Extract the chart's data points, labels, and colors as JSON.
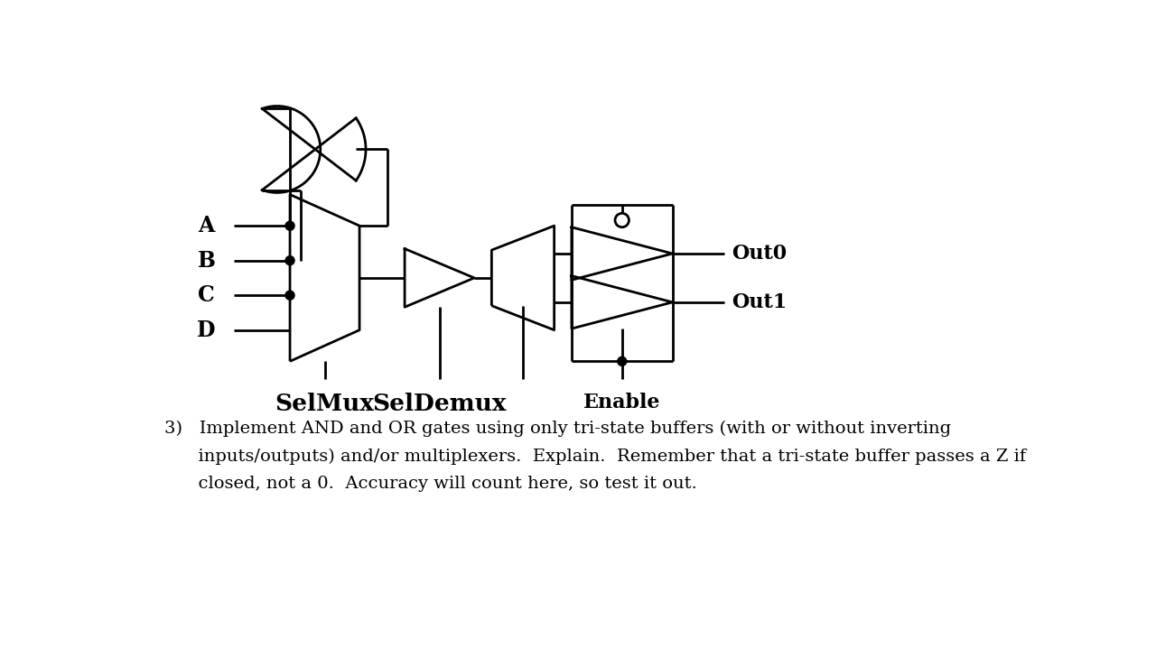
{
  "bg_color": "#ffffff",
  "line_color": "#000000",
  "lw": 2.0,
  "input_labels": [
    "A",
    "B",
    "C",
    "D"
  ],
  "label_Out0": "Out0",
  "label_Out1": "Out1",
  "label_Enable": "Enable",
  "label_SelMux": "SelMux",
  "label_SelDemux": "SelDemux",
  "q3_line1": "3)   Implement AND and OR gates using only tri-state buffers (with or without inverting",
  "q3_line2": "      inputs/outputs) and/or multiplexers.  Explain.  Remember that a tri-state buffer passes a Z if",
  "q3_line3": "      closed, not a 0.  Accuracy will count here, so test it out."
}
